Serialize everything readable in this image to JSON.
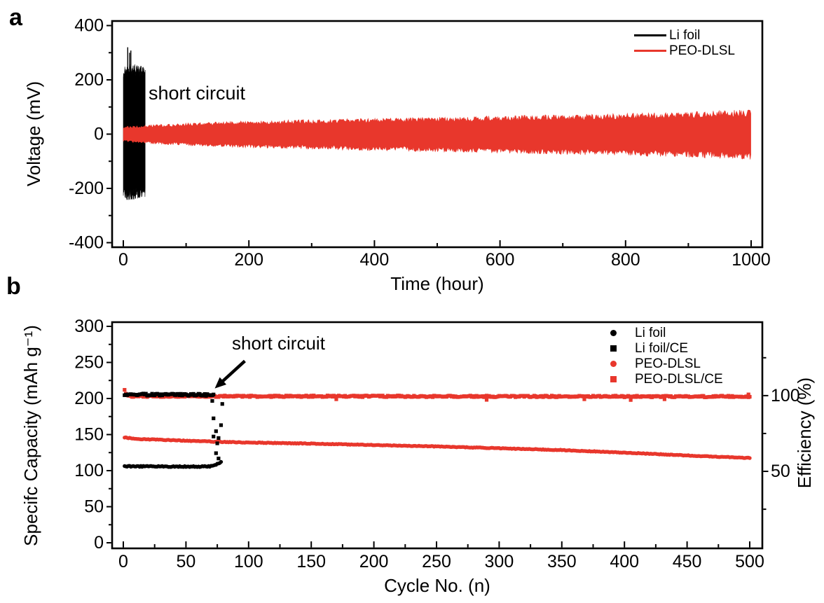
{
  "figure": {
    "panel_a_label": "a",
    "panel_b_label": "b",
    "background": "#ffffff"
  },
  "colors": {
    "black": "#000000",
    "red": "#e8372c"
  },
  "chart_data": [
    {
      "panel": "a",
      "type": "line",
      "xlabel": "Time (hour)",
      "ylabel": "Voltage (mV)",
      "xlim": [
        0,
        1000
      ],
      "ylim": [
        -400,
        400
      ],
      "xticks": [
        0,
        200,
        400,
        600,
        800,
        1000
      ],
      "yticks": [
        400,
        200,
        0,
        -200,
        -400
      ],
      "x_minor_ticks": [
        100,
        300,
        500,
        700,
        900
      ],
      "y_minor_ticks": [
        300,
        100,
        -100,
        -300
      ],
      "grid": false,
      "legend_position": "top-right-inside",
      "annotation": {
        "text": "short circuit"
      },
      "legend": [
        {
          "label": "Li foil",
          "color": "#000000",
          "marker": "line"
        },
        {
          "label": "PEO-DLSL",
          "color": "#e8372c",
          "marker": "line"
        }
      ],
      "series": [
        {
          "name": "Li foil",
          "color": "#000000",
          "style": "noise-band",
          "t_range": [
            0,
            35
          ],
          "envelope_upper": [
            [
              0,
              235
            ],
            [
              5,
              250
            ],
            [
              10,
              252
            ],
            [
              20,
              250
            ],
            [
              30,
              244
            ],
            [
              35,
              238
            ]
          ],
          "envelope_lower": [
            [
              0,
              -225
            ],
            [
              5,
              -232
            ],
            [
              10,
              -238
            ],
            [
              20,
              -234
            ],
            [
              30,
              -230
            ],
            [
              35,
              -228
            ]
          ],
          "spikes": [
            [
              7,
              320
            ],
            [
              10,
              300
            ],
            [
              12,
              308
            ],
            [
              6,
              -242
            ],
            [
              13,
              -240
            ]
          ],
          "note": "symmetric cycling noise; cell short-circuits at ~35 h and trace ends"
        },
        {
          "name": "PEO-DLSL",
          "color": "#e8372c",
          "style": "noise-band",
          "t_range": [
            0,
            1000
          ],
          "envelope": [
            [
              0,
              27
            ],
            [
              50,
              33
            ],
            [
              100,
              38
            ],
            [
              200,
              46
            ],
            [
              300,
              50
            ],
            [
              400,
              55
            ],
            [
              500,
              58
            ],
            [
              600,
              63
            ],
            [
              700,
              67
            ],
            [
              800,
              71
            ],
            [
              900,
              77
            ],
            [
              1000,
              84
            ]
          ],
          "note": "oscillation amplitude (mV) grows slowly over full 1000 h"
        }
      ]
    },
    {
      "panel": "b",
      "type": "scatter",
      "xlabel": "Cycle No. (n)",
      "ylabel": "Specifc Capacity (mAh g⁻¹)",
      "xlim": [
        0,
        500
      ],
      "ylim_left": [
        0,
        300
      ],
      "xticks": [
        0,
        50,
        100,
        150,
        200,
        250,
        300,
        350,
        400,
        450,
        500
      ],
      "yticks_left": [
        300,
        250,
        200,
        150,
        100,
        50,
        0
      ],
      "x_minor_ticks": [
        25,
        75,
        125,
        175,
        225,
        275,
        325,
        375,
        425,
        475
      ],
      "y_minor_ticks_left": [
        275,
        225,
        175,
        125,
        75,
        25
      ],
      "grid": false,
      "right_axis": {
        "label": "Efficiency (%)",
        "ticks": [
          100,
          50
        ],
        "minor_ticks": [
          125,
          75,
          25
        ],
        "calibration": {
          "eff_100_at_left": 204,
          "eff_50_at_left": 99
        }
      },
      "annotation": {
        "text": "short circuit",
        "arrow_tail": {
          "cycle": 97,
          "left_value": 252
        },
        "arrow_tip": {
          "cycle": 73,
          "left_value": 214
        }
      },
      "legend": [
        {
          "label": "Li foil",
          "color": "#000000",
          "marker": "circle"
        },
        {
          "label": "Li foil/CE",
          "color": "#000000",
          "marker": "square"
        },
        {
          "label": "PEO-DLSL",
          "color": "#e8372c",
          "marker": "circle"
        },
        {
          "label": "PEO-DLSL/CE",
          "color": "#e8372c",
          "marker": "square"
        }
      ],
      "series": [
        {
          "name": "Li foil",
          "marker": "circle",
          "color": "#000000",
          "axis": "left",
          "zorder": 4,
          "cycle_range": [
            1,
            78
          ],
          "trend": [
            [
              1,
              106
            ],
            [
              60,
              105.5
            ],
            [
              70,
              106
            ],
            [
              73,
              107.5
            ],
            [
              76,
              110
            ],
            [
              78,
              112
            ]
          ],
          "noise": 0.7,
          "note": "~106 mAh/g flat, rises to ~112 just before short circuit at cycle ~75, then stops"
        },
        {
          "name": "Li foil/CE",
          "marker": "square",
          "color": "#000000",
          "axis": "right",
          "zorder": 3,
          "cycle_range": [
            1,
            72
          ],
          "trend": [
            [
              1,
              100.7
            ],
            [
              72,
              100.5
            ]
          ],
          "noise": 0.7,
          "outliers": [
            [
              71,
              96.5
            ],
            [
              79,
              94.5
            ],
            [
              72,
              85
            ],
            [
              78,
              80.5
            ],
            [
              74,
              76.5
            ],
            [
              72,
              73
            ],
            [
              76,
              72
            ],
            [
              75,
              68.5
            ],
            [
              74,
              62
            ],
            [
              76,
              58.5
            ]
          ],
          "note": "~100% until short circuit, then efficiency scatters down to ~58%"
        },
        {
          "name": "PEO-DLSL",
          "marker": "circle",
          "color": "#e8372c",
          "axis": "left",
          "zorder": 2,
          "cycle_range": [
            1,
            500
          ],
          "trend": [
            [
              1,
              146
            ],
            [
              10,
              144
            ],
            [
              50,
              141.5
            ],
            [
              75,
              140
            ],
            [
              100,
              139
            ],
            [
              150,
              137.5
            ],
            [
              200,
              135.5
            ],
            [
              250,
              133.5
            ],
            [
              300,
              131
            ],
            [
              350,
              128.5
            ],
            [
              400,
              125
            ],
            [
              450,
              121
            ],
            [
              500,
              117.5
            ]
          ],
          "noise": 0.45,
          "note": "capacity fades gently from ~146 to ~117 mAh/g over 500 cycles"
        },
        {
          "name": "PEO-DLSL/CE",
          "marker": "square",
          "color": "#e8372c",
          "axis": "right",
          "zorder": 1,
          "cycle_range": [
            1,
            500
          ],
          "trend": [
            [
              1,
              104
            ],
            [
              2,
              101
            ],
            [
              4,
              99.6
            ],
            [
              500,
              99.4
            ]
          ],
          "noise": 0.55,
          "outliers": [
            [
              170,
              97.6
            ],
            [
              290,
              97.2
            ],
            [
              368,
              97.6
            ],
            [
              405,
              97.1
            ],
            [
              432,
              97.6
            ],
            [
              499,
              100.8
            ]
          ],
          "note": "~99-100% efficiency stable for 500 cycles"
        }
      ]
    }
  ]
}
